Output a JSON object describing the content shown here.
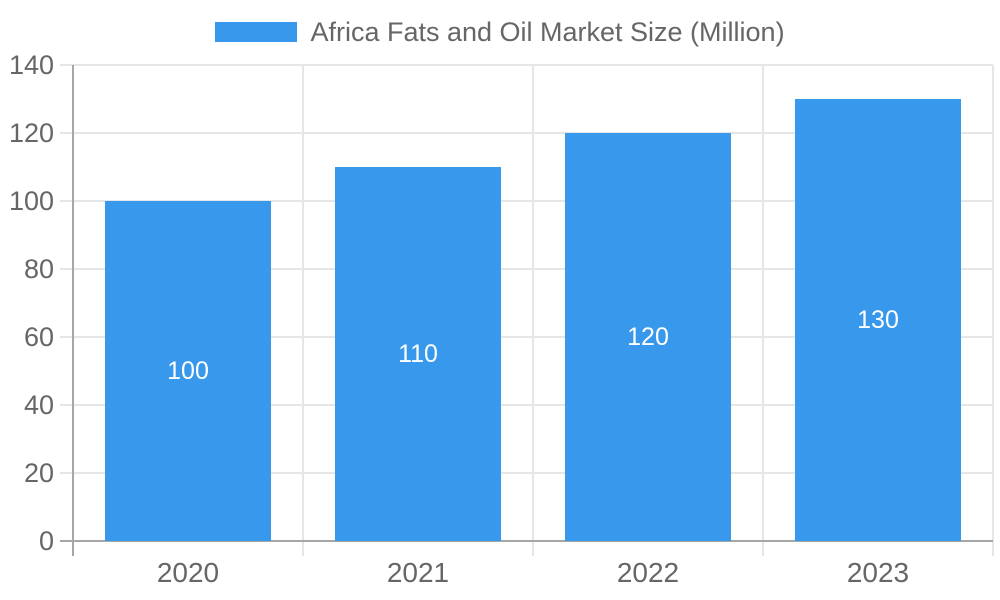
{
  "chart_data": {
    "type": "bar",
    "title": "Africa Fats and Oil Market Size (Million)",
    "categories": [
      "2020",
      "2021",
      "2022",
      "2023"
    ],
    "values": [
      100,
      110,
      120,
      130
    ],
    "data_labels": [
      "100",
      "110",
      "120",
      "130"
    ],
    "xlabel": "",
    "ylabel": "",
    "ylim": [
      0,
      140
    ],
    "ytick_step": 20,
    "ytick_labels": [
      "0",
      "20",
      "40",
      "60",
      "80",
      "100",
      "120",
      "140"
    ],
    "grid": true,
    "legend_position": "top-center",
    "colors": {
      "bar": "#3899EC",
      "bar_label": "#FFFFFF",
      "axis": "#A6A6A6",
      "gridline": "#E6E6E6",
      "tick_text": "#666666",
      "legend_text": "#666666",
      "background": "#FFFFFF"
    }
  }
}
